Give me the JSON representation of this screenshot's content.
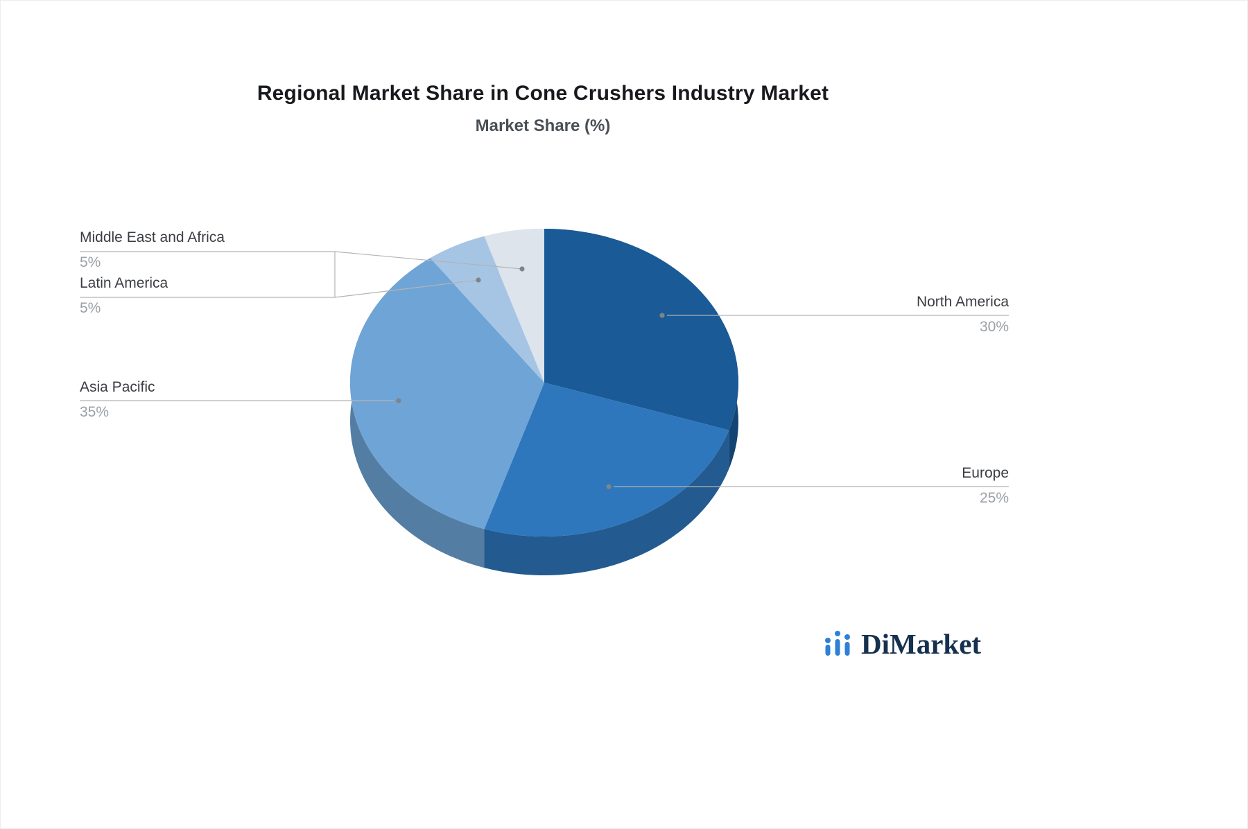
{
  "header": {
    "title": "Regional Market Share in Cone Crushers Industry Market",
    "subtitle": "Market Share (%)"
  },
  "chart_data": {
    "type": "pie",
    "title": "Regional Market Share in Cone Crushers Industry Market",
    "subtitle": "Market Share (%)",
    "unit": "%",
    "labels": [
      "North America",
      "Europe",
      "Asia Pacific",
      "Latin America",
      "Middle East and Africa"
    ],
    "values": [
      30,
      25,
      35,
      5,
      5
    ],
    "colors": [
      "#1a5a96",
      "#2e77bd",
      "#6fa4d6",
      "#a6c5e5",
      "#dee4ec"
    ],
    "start_angle_deg": 0,
    "direction": "clockwise",
    "style": "3d-extruded",
    "legend_position": "none",
    "label_format": "name above percent, leader lines to slices"
  },
  "callouts": [
    {
      "name": "North America",
      "value": "30%"
    },
    {
      "name": "Europe",
      "value": "25%"
    },
    {
      "name": "Asia Pacific",
      "value": "35%"
    },
    {
      "name": "Latin America",
      "value": "5%"
    },
    {
      "name": "Middle East and Africa",
      "value": "5%"
    }
  ],
  "logo": {
    "text": "DiMarket"
  }
}
